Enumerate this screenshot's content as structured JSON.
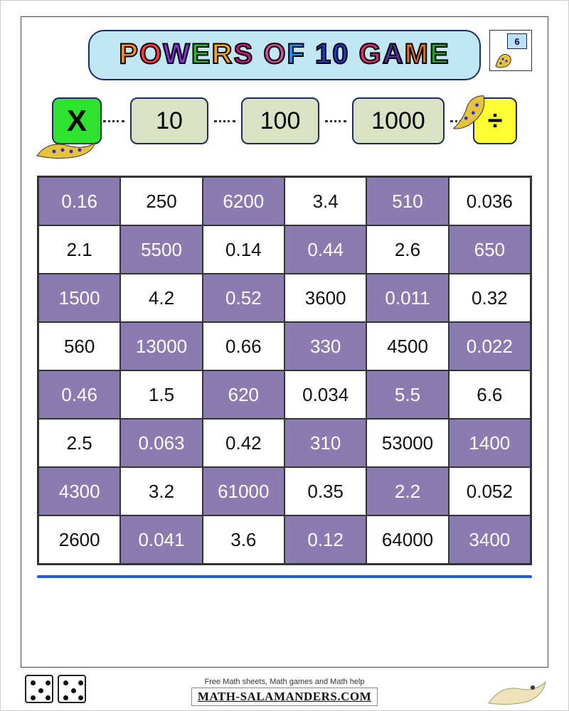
{
  "badge": {
    "grade": "6"
  },
  "title": {
    "words": [
      {
        "text": "P",
        "color": "#ff8c1a"
      },
      {
        "text": "O",
        "color": "#ff3b3b"
      },
      {
        "text": "W",
        "color": "#8a2be2"
      },
      {
        "text": "E",
        "color": "#2fb82f"
      },
      {
        "text": "R",
        "color": "#ffa500"
      },
      {
        "text": "S",
        "color": "#c71585"
      },
      {
        "text": " ",
        "color": "#000"
      },
      {
        "text": "O",
        "color": "#d04b9a"
      },
      {
        "text": "F",
        "color": "#1e90ff"
      },
      {
        "text": " ",
        "color": "#000"
      },
      {
        "text": "1",
        "color": "#1b3bd0"
      },
      {
        "text": "0",
        "color": "#1b3bd0"
      },
      {
        "text": " ",
        "color": "#000"
      },
      {
        "text": "G",
        "color": "#e1276e"
      },
      {
        "text": "A",
        "color": "#5a2ca0"
      },
      {
        "text": "M",
        "color": "#e86d17"
      },
      {
        "text": "E",
        "color": "#24a02b"
      }
    ],
    "banner_bg": "#bfe6f2",
    "banner_border": "#1a2b6d",
    "font_size_pt": 30,
    "stroke": "#000000"
  },
  "operator_row": {
    "multiply": {
      "symbol": "X",
      "bg": "#2fe22f"
    },
    "divide": {
      "symbol": "÷",
      "bg": "#ffff33"
    },
    "numbers": [
      "10",
      "100",
      "1000"
    ],
    "number_bg": "#d9e3c4",
    "border": "#1a2b6d",
    "connector_color": "#333333"
  },
  "grid": {
    "cols": 6,
    "rows": 8,
    "cell_font_size_pt": 20,
    "colors": {
      "purple_bg": "#8a7bb0",
      "purple_fg": "#ffffff",
      "white_bg": "#ffffff",
      "white_fg": "#111111",
      "border": "#333333"
    },
    "pattern": "checker_start_purple",
    "values": [
      [
        "0.16",
        "250",
        "6200",
        "3.4",
        "510",
        "0.036"
      ],
      [
        "2.1",
        "5500",
        "0.14",
        "0.44",
        "2.6",
        "650"
      ],
      [
        "1500",
        "4.2",
        "0.52",
        "3600",
        "0.011",
        "0.32"
      ],
      [
        "560",
        "13000",
        "0.66",
        "330",
        "4500",
        "0.022"
      ],
      [
        "0.46",
        "1.5",
        "620",
        "0.034",
        "5.5",
        "6.6"
      ],
      [
        "2.5",
        "0.063",
        "0.42",
        "310",
        "53000",
        "1400"
      ],
      [
        "4300",
        "3.2",
        "61000",
        "0.35",
        "2.2",
        "0.052"
      ],
      [
        "2600",
        "0.041",
        "3.6",
        "0.12",
        "64000",
        "3400"
      ]
    ]
  },
  "bottom_rule_color": "#2a5bd7",
  "footer": {
    "tagline": "Free Math sheets, Math games and Math help",
    "brand": "MATH-SALAMANDERS.COM",
    "dice": [
      5,
      5
    ]
  },
  "decorations": {
    "salamander_body": "#e7c33a",
    "salamander_spots": "#2a2be8"
  }
}
